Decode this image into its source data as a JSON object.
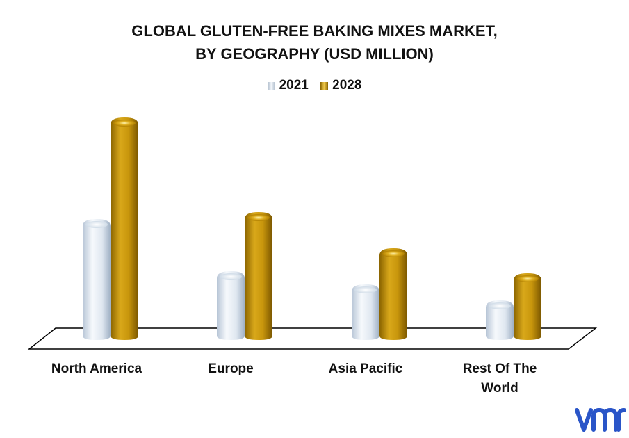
{
  "chart_data": {
    "type": "bar",
    "title_line1": "GLOBAL GLUTEN-FREE  BAKING MIXES MARKET,",
    "title_line2": "BY GEOGRAPHY (USD MILLION)",
    "categories": [
      "North America",
      "Europe",
      "Asia Pacific",
      "Rest Of The World"
    ],
    "series": [
      {
        "name": "2021",
        "values": [
          170,
          95,
          76,
          53
        ],
        "color": "#dde6f0"
      },
      {
        "name": "2028",
        "values": [
          316,
          180,
          128,
          92
        ],
        "color": "#c8960c"
      }
    ],
    "ylim": [
      0,
      330
    ],
    "grid": false,
    "legend": "top-center"
  },
  "logo": {
    "text": "vmr",
    "color": "#2a55c8"
  }
}
